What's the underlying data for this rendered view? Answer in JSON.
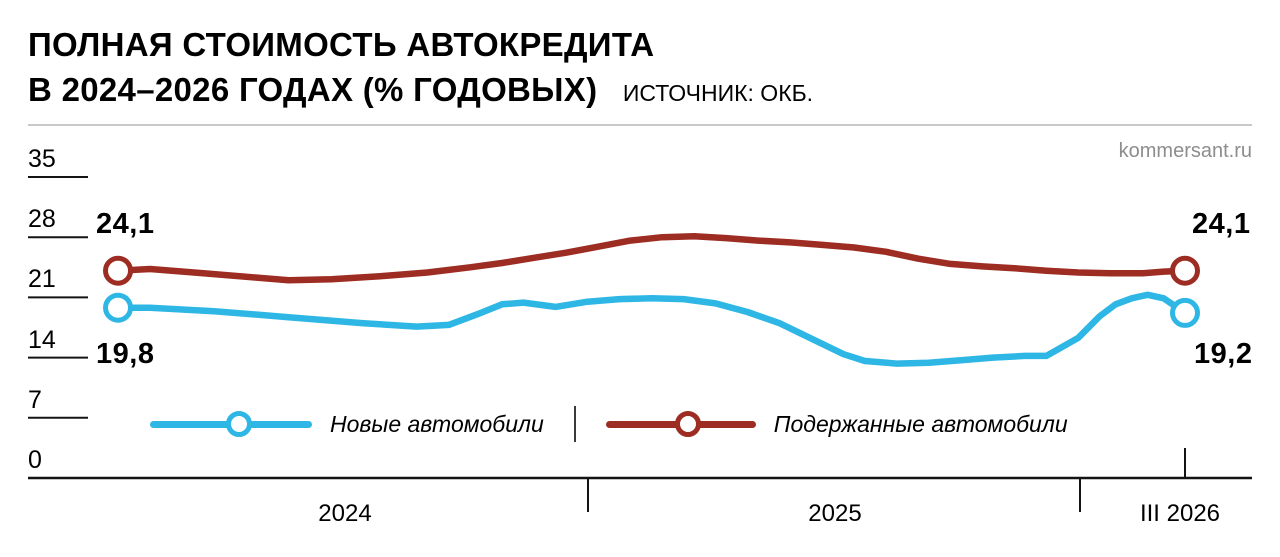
{
  "header": {
    "title_line1": "ПОЛНАЯ СТОИМОСТЬ АВТОКРЕДИТА",
    "title_line2": "В 2024–2026 ГОДАХ (% ГОДОВЫХ)",
    "source": "ИСТОЧНИК: ОКБ."
  },
  "watermark": "kommersant.ru",
  "chart_data": {
    "type": "line",
    "title": "Полная стоимость автокредита в 2024–2026 годах (% годовых)",
    "source": "ОКБ",
    "unit": "% годовых",
    "ylim": [
      0,
      35
    ],
    "yticks": [
      35,
      28,
      21,
      14,
      7,
      0
    ],
    "x_segments": [
      "2024",
      "2025",
      "III 2026"
    ],
    "grid": false,
    "legend_position": "bottom-inside",
    "series": [
      {
        "name": "Новые автомобили",
        "color": "#2eb7e5",
        "start_label": "19,8",
        "end_label": "19,2",
        "points": [
          [
            0,
            19.8
          ],
          [
            3,
            19.8
          ],
          [
            9,
            19.4
          ],
          [
            16,
            18.7
          ],
          [
            23,
            18.0
          ],
          [
            28,
            17.6
          ],
          [
            31,
            17.8
          ],
          [
            34,
            19.2
          ],
          [
            36,
            20.2
          ],
          [
            38,
            20.4
          ],
          [
            41,
            19.9
          ],
          [
            44,
            20.5
          ],
          [
            47,
            20.8
          ],
          [
            50,
            20.9
          ],
          [
            53,
            20.8
          ],
          [
            56,
            20.3
          ],
          [
            59,
            19.3
          ],
          [
            62,
            18.0
          ],
          [
            65,
            16.2
          ],
          [
            68,
            14.4
          ],
          [
            70,
            13.6
          ],
          [
            73,
            13.3
          ],
          [
            76,
            13.4
          ],
          [
            79,
            13.7
          ],
          [
            82,
            14.0
          ],
          [
            85,
            14.2
          ],
          [
            87,
            14.2
          ],
          [
            90,
            16.3
          ],
          [
            92,
            18.8
          ],
          [
            93.5,
            20.2
          ],
          [
            95,
            20.9
          ],
          [
            96.5,
            21.3
          ],
          [
            98,
            20.9
          ],
          [
            100,
            19.2
          ]
        ]
      },
      {
        "name": "Подержанные автомобили",
        "color": "#9d2d23",
        "start_label": "24,1",
        "end_label": "24,1",
        "points": [
          [
            0,
            24.1
          ],
          [
            3,
            24.3
          ],
          [
            8,
            23.8
          ],
          [
            13,
            23.3
          ],
          [
            16,
            23.0
          ],
          [
            20,
            23.1
          ],
          [
            25,
            23.5
          ],
          [
            29,
            23.9
          ],
          [
            33,
            24.5
          ],
          [
            36,
            25.0
          ],
          [
            39,
            25.6
          ],
          [
            42,
            26.2
          ],
          [
            45,
            26.9
          ],
          [
            48,
            27.6
          ],
          [
            51,
            28.0
          ],
          [
            54,
            28.1
          ],
          [
            57,
            27.9
          ],
          [
            60,
            27.6
          ],
          [
            63,
            27.4
          ],
          [
            66,
            27.1
          ],
          [
            69,
            26.8
          ],
          [
            72,
            26.3
          ],
          [
            75,
            25.5
          ],
          [
            78,
            24.9
          ],
          [
            81,
            24.6
          ],
          [
            84,
            24.4
          ],
          [
            87,
            24.1
          ],
          [
            90,
            23.9
          ],
          [
            93,
            23.8
          ],
          [
            96,
            23.8
          ],
          [
            98,
            24.0
          ],
          [
            100,
            24.1
          ]
        ]
      }
    ]
  }
}
